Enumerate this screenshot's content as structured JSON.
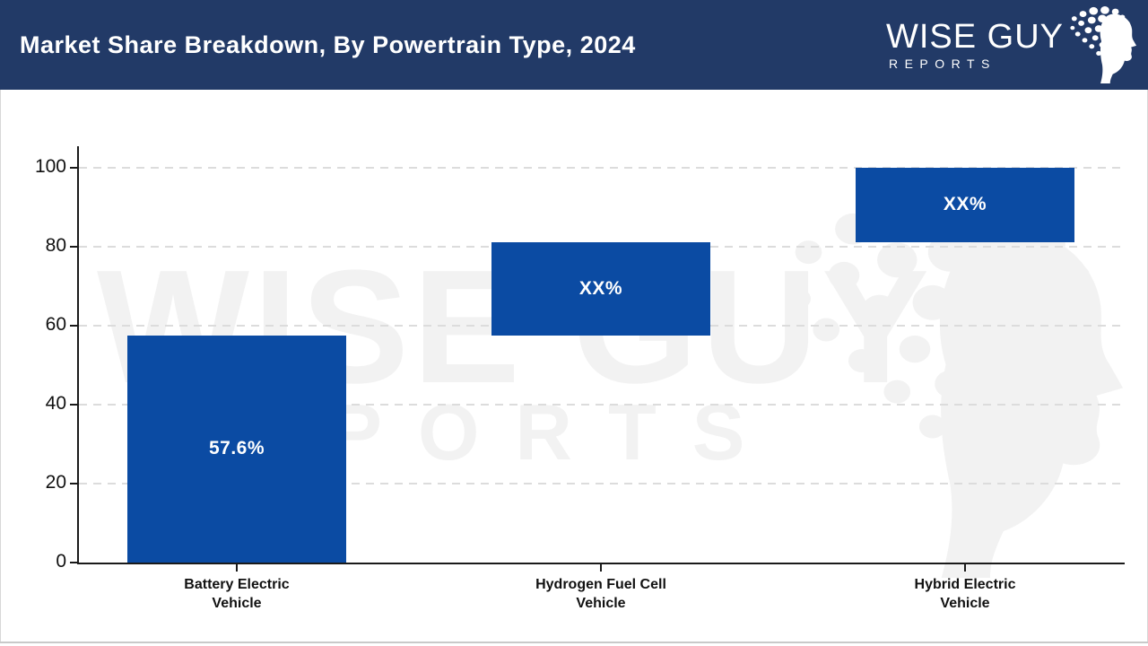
{
  "header": {
    "title": "Market Share Breakdown, By Powertrain Type, 2024",
    "logo": {
      "primary": "WISE GUY",
      "secondary": "REPORTS"
    }
  },
  "watermark": {
    "line1": "WISE GUY",
    "line2": "REPORTS"
  },
  "colors": {
    "header_bg": "#223A67",
    "bar": "#0b4ba3",
    "bar_label": "#ffffff",
    "axis": "#1a1a1a",
    "gridline": "#dcdcdc",
    "watermark": "#f2f2f2"
  },
  "chart_data": {
    "type": "bar",
    "subtype": "waterfall",
    "title": "Market Share Breakdown, By Powertrain Type, 2024",
    "categories": [
      "Battery Electric Vehicle",
      "Hydrogen Fuel Cell Vehicle",
      "Hybrid Electric Vehicle"
    ],
    "category_lines": [
      [
        "Battery Electric",
        "Vehicle"
      ],
      [
        "Hydrogen Fuel Cell",
        "Vehicle"
      ],
      [
        "Hybrid Electric",
        "Vehicle"
      ]
    ],
    "segments": [
      {
        "category": "Battery Electric Vehicle",
        "start": 0,
        "end": 57.6,
        "label": "57.6%"
      },
      {
        "category": "Hydrogen Fuel Cell Vehicle",
        "start": 57.6,
        "end": 81.2,
        "label": "XX%"
      },
      {
        "category": "Hybrid Electric Vehicle",
        "start": 81.2,
        "end": 100,
        "label": "XX%"
      }
    ],
    "yticks": [
      0,
      20,
      40,
      60,
      80,
      100
    ],
    "ylim": [
      0,
      105
    ],
    "xlabel": "",
    "ylabel": "",
    "grid": "horizontal-dashed",
    "legend": "none"
  }
}
